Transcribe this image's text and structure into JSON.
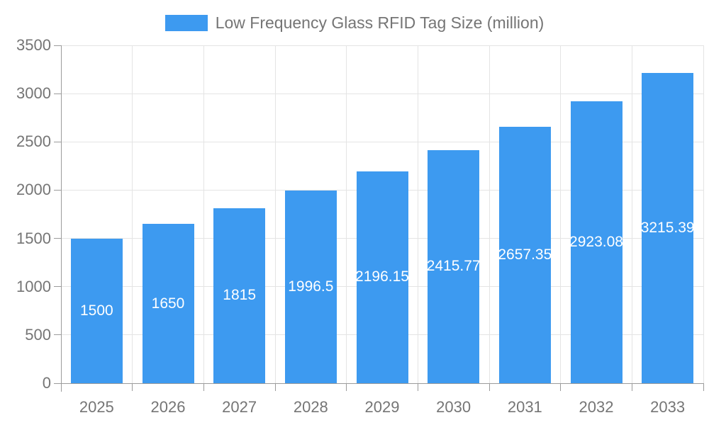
{
  "legend": {
    "label": "Low Frequency Glass RFID Tag Size (million)"
  },
  "chart_data": {
    "type": "bar",
    "title": "Low Frequency Glass RFID Tag Size (million)",
    "legend_position": "top-center",
    "xlabel": "",
    "ylabel": "",
    "categories": [
      "2025",
      "2026",
      "2027",
      "2028",
      "2029",
      "2030",
      "2031",
      "2032",
      "2033"
    ],
    "values": [
      1500,
      1650,
      1815,
      1996.5,
      2196.15,
      2415.77,
      2657.35,
      2923.08,
      3215.39
    ],
    "value_labels": [
      "1500",
      "1650",
      "1815",
      "1996.5",
      "2196.15",
      "2415.77",
      "2657.35",
      "2923.08",
      "3215.39"
    ],
    "ylim": [
      0,
      3500
    ],
    "y_ticks": [
      0,
      500,
      1000,
      1500,
      2000,
      2500,
      3000,
      3500
    ],
    "grid": true,
    "colors": {
      "bar": "#3D9AF0",
      "value_label": "#ffffff",
      "axis_text": "#757575",
      "grid_line": "#e4e4e4",
      "axis_line": "#9b9b9b"
    }
  }
}
